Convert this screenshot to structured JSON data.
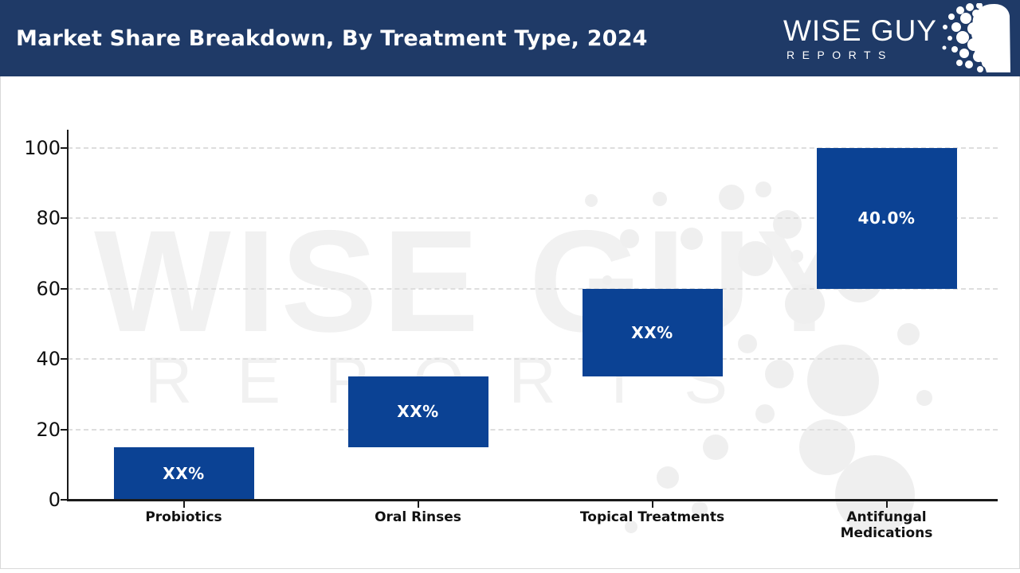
{
  "header": {
    "title": "Market Share Breakdown, By Treatment Type, 2024",
    "bg_color": "#1f3a67",
    "logo": {
      "line1": "WISE GUY",
      "line2": "REPORTS"
    }
  },
  "watermark": {
    "line1": "WISE GUY",
    "line2": "REPORTS"
  },
  "chart_data": {
    "type": "bar",
    "subtype": "waterfall",
    "title": "Market Share Breakdown, By Treatment Type, 2024",
    "categories": [
      "Probiotics",
      "Oral Rinses",
      "Topical Treatments",
      "Antifungal\nMedications"
    ],
    "bars": [
      {
        "category": "Probiotics",
        "start": 0,
        "end": 15,
        "value": 15,
        "label": "XX%"
      },
      {
        "category": "Oral Rinses",
        "start": 15,
        "end": 35,
        "value": 20,
        "label": "XX%"
      },
      {
        "category": "Topical Treatments",
        "start": 35,
        "end": 60,
        "value": 25,
        "label": "XX%"
      },
      {
        "category": "Antifungal\nMedications",
        "start": 60,
        "end": 100,
        "value": 40,
        "label": "40.0%"
      }
    ],
    "y_ticks": [
      0,
      20,
      40,
      60,
      80,
      100
    ],
    "ylim": [
      0,
      100
    ],
    "xlabel": "",
    "ylabel": "",
    "bar_color": "#0b4294",
    "grid": "horizontal dashed",
    "legend": "none"
  }
}
